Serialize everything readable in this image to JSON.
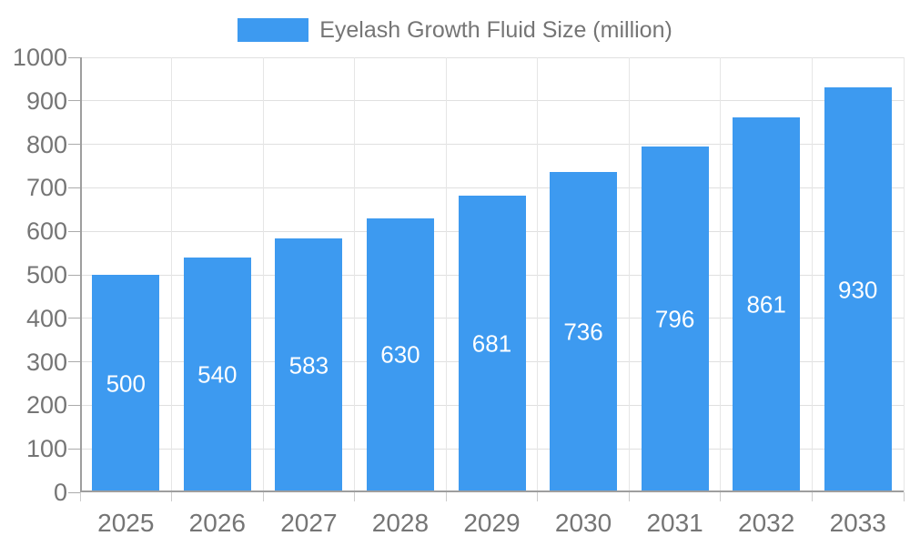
{
  "legend": {
    "label": "Eyelash Growth Fluid Size (million)"
  },
  "chart_data": {
    "type": "bar",
    "title": "Eyelash Growth Fluid Size (million)",
    "categories": [
      "2025",
      "2026",
      "2027",
      "2028",
      "2029",
      "2030",
      "2031",
      "2032",
      "2033"
    ],
    "values": [
      500,
      540,
      583,
      630,
      681,
      736,
      796,
      861,
      930
    ],
    "value_labels": [
      "500",
      "540",
      "583",
      "630",
      "681",
      "736",
      "796",
      "861",
      "930"
    ],
    "xlabel": "",
    "ylabel": "",
    "ylim": [
      0,
      1000
    ],
    "yticks": [
      "0",
      "100",
      "200",
      "300",
      "400",
      "500",
      "600",
      "700",
      "800",
      "900",
      "1000"
    ],
    "grid": true,
    "legend_position": "top-center",
    "colors": {
      "bar": "#3d9af0",
      "value_label_text": "#ffffff",
      "axis_text": "#757575",
      "legend_text": "#757575",
      "axis_line": "#9e9e9e",
      "gridline": "#e0e0e0",
      "background": "#ffffff"
    }
  }
}
